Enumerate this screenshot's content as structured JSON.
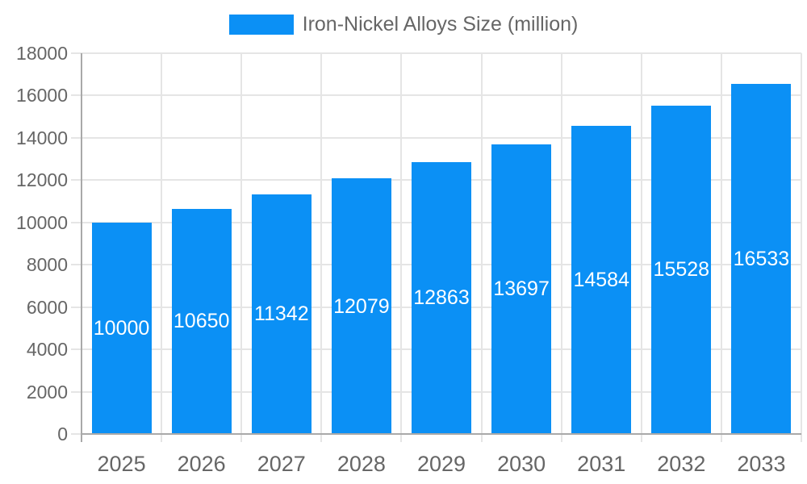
{
  "chart_data": {
    "type": "bar",
    "title": "Iron-Nickel Alloys Size (million)",
    "legend_label": "Iron-Nickel Alloys Size (million)",
    "legend_position": "top",
    "categories": [
      "2025",
      "2026",
      "2027",
      "2028",
      "2029",
      "2030",
      "2031",
      "2032",
      "2033"
    ],
    "values": [
      10000,
      10650,
      11342,
      12079,
      12863,
      13697,
      14584,
      15528,
      16533
    ],
    "xlabel": "",
    "ylabel": "",
    "ylim": [
      0,
      18000
    ],
    "ytick_step": 2000,
    "grid": true,
    "bar_value_labels_visible": true
  },
  "colors": {
    "bar_fill": "#0b90f5",
    "bar_label_text": "#ffffff",
    "tick_text": "#666666",
    "grid_line": "#e5e5e5",
    "axis_line": "#a9a9a9",
    "background": "#ffffff"
  }
}
